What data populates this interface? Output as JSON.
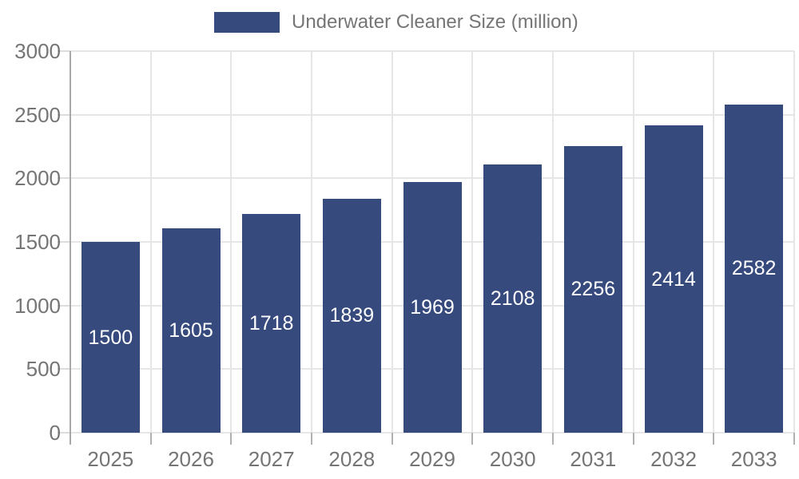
{
  "legend": {
    "label": "Underwater Cleaner Size (million)"
  },
  "chart_data": {
    "type": "bar",
    "title": "",
    "xlabel": "",
    "ylabel": "",
    "categories": [
      "2025",
      "2026",
      "2027",
      "2028",
      "2029",
      "2030",
      "2031",
      "2032",
      "2033"
    ],
    "series": [
      {
        "name": "Underwater Cleaner Size (million)",
        "values": [
          1500,
          1605,
          1718,
          1839,
          1969,
          2108,
          2256,
          2414,
          2582
        ]
      }
    ],
    "value_labels_shown": true,
    "ylim": [
      0,
      3000
    ],
    "yticks": [
      0,
      500,
      1000,
      1500,
      2000,
      2500,
      3000
    ],
    "grid": true,
    "legend_position": "top",
    "colors": {
      "bar": "#364A7E",
      "value_label": "#ffffff",
      "tick_label": "#757575",
      "legend_text": "#757575",
      "gridline": "#e6e6e6",
      "axis_line": "#a8a8a8"
    }
  }
}
